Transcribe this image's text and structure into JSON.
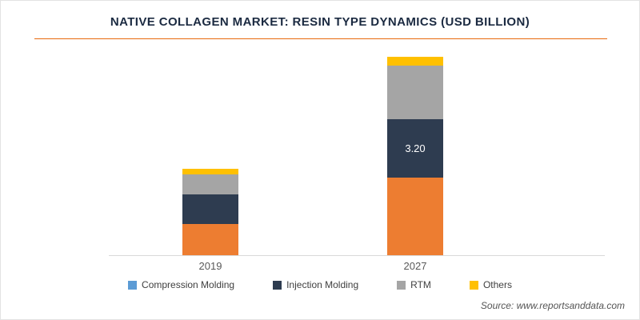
{
  "title": "NATIVE COLLAGEN MARKET: RESIN TYPE DYNAMICS (USD BILLION)",
  "source": "Source: www.reportsanddata.com",
  "colors": {
    "title": "#1b2a41",
    "title_rule": "#e8690d",
    "axis_line": "#d9d9d9",
    "tick_text": "#595959"
  },
  "chart_data": {
    "type": "bar",
    "stacked": true,
    "title": "NATIVE COLLAGEN MARKET: RESIN TYPE DYNAMICS (USD BILLION)",
    "categories": [
      "2019",
      "2027"
    ],
    "series": [
      {
        "name": "Compression Molding",
        "bar_color": "#ED7D31",
        "legend_color": "#5B9BD5",
        "values": [
          1.7,
          4.2
        ]
      },
      {
        "name": "Injection Molding",
        "bar_color": "#2E3C50",
        "legend_color": "#2E3C50",
        "values": [
          1.6,
          3.2
        ]
      },
      {
        "name": "RTM",
        "bar_color": "#A5A5A5",
        "legend_color": "#A5A5A5",
        "values": [
          1.1,
          2.9
        ]
      },
      {
        "name": "Others",
        "bar_color": "#FFC000",
        "legend_color": "#FFC000",
        "values": [
          0.3,
          0.5
        ]
      }
    ],
    "data_labels": [
      {
        "series_index": 1,
        "category_index": 1,
        "text": "3.20"
      }
    ],
    "xlabel": "",
    "ylabel": "",
    "ylim": [
      0,
      11
    ],
    "grid": false,
    "legend_position": "bottom"
  }
}
